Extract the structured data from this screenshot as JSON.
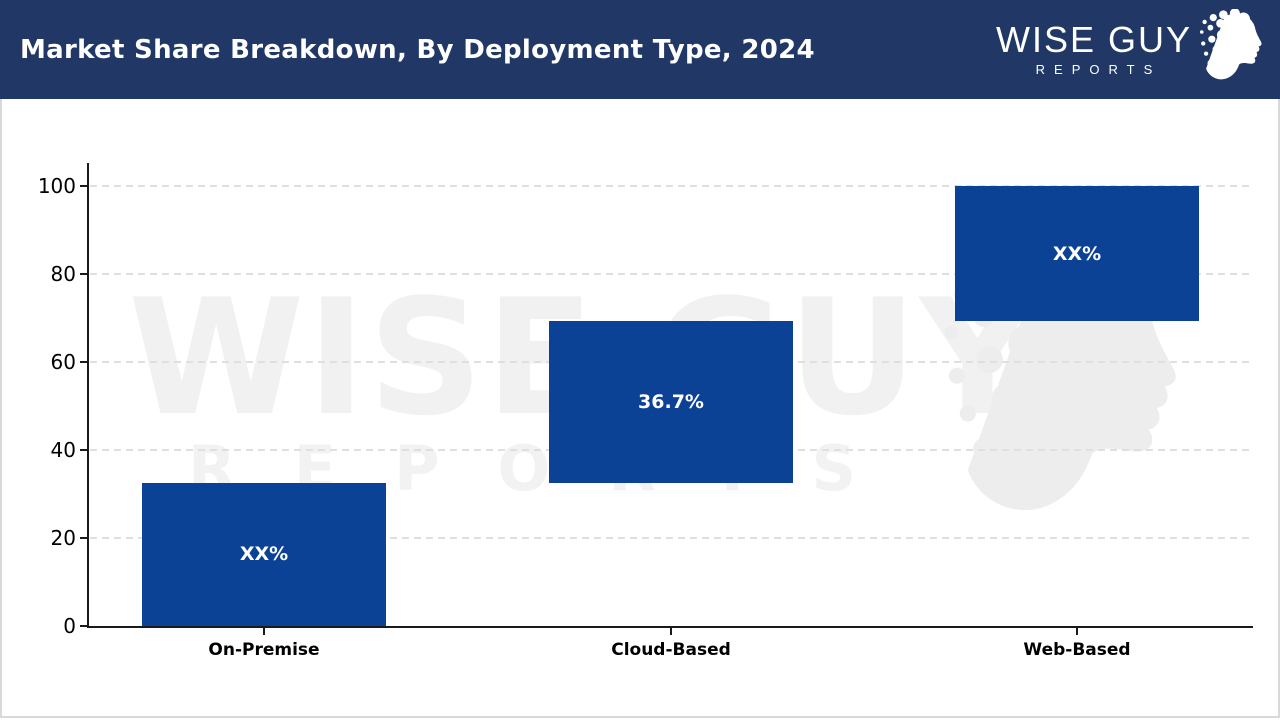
{
  "header": {
    "title": "Market Share Breakdown, By Deployment Type, 2024",
    "bg_color": "#213866",
    "logo": {
      "line1": "WISE GUY",
      "line2": "REPORTS"
    }
  },
  "watermark": {
    "line1": "WISE GUY",
    "line2": "REPORTS"
  },
  "chart_data": {
    "type": "bar",
    "subtype": "floating-segment breakdown (stacked waterfall of market share)",
    "title": "Market Share Breakdown, By Deployment Type, 2024",
    "xlabel": "",
    "ylabel": "",
    "categories": [
      "On-Premise",
      "Cloud-Based",
      "Web-Based"
    ],
    "segments": [
      {
        "category": "On-Premise",
        "from": 0,
        "to": 32.6,
        "label": "XX%"
      },
      {
        "category": "Cloud-Based",
        "from": 32.6,
        "to": 69.3,
        "label": "36.7%"
      },
      {
        "category": "Web-Based",
        "from": 69.3,
        "to": 100,
        "label": "XX%"
      }
    ],
    "segment_sizes_estimated": [
      32.6,
      36.7,
      30.7
    ],
    "only_explicit_value_shown": "36.7%",
    "yticks": [
      0,
      20,
      40,
      60,
      80,
      100
    ],
    "ylim": [
      0,
      105
    ],
    "grid": "horizontal dashed",
    "legend": "none",
    "bar_color": "#0b4296",
    "bar_label_color": "#ffffff",
    "axis_color": "#1a1a1a",
    "grid_color": "#dfdfdf",
    "watermark_color": "#f1f1f1"
  }
}
